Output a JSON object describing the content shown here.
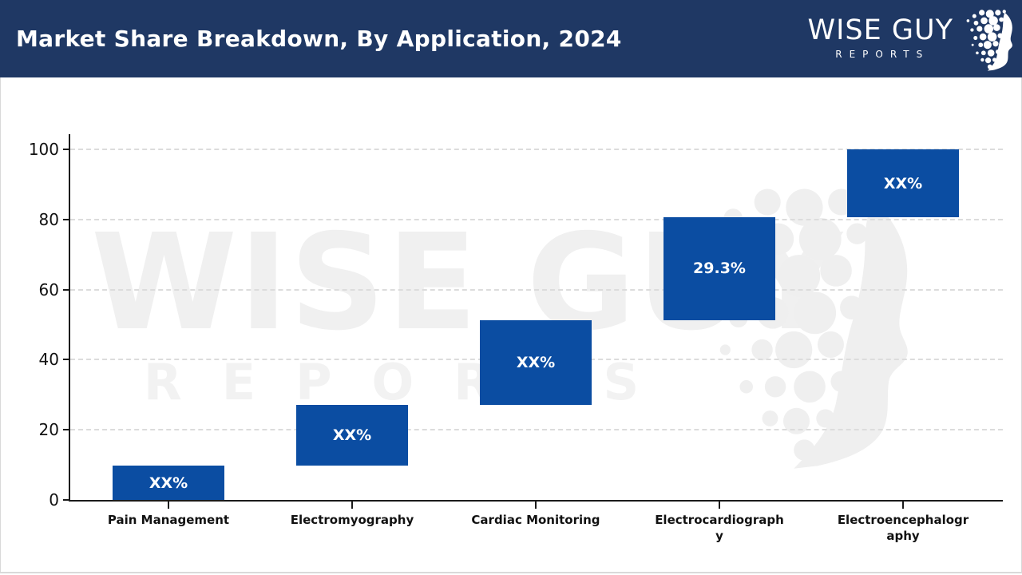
{
  "header": {
    "title": "Market Share Breakdown, By Application, 2024",
    "logo": {
      "line1": "WISE GUY",
      "line2": "REPORTS"
    }
  },
  "watermark": {
    "line1": "WISE GUY",
    "line2": "REPORTS"
  },
  "colors": {
    "header_bg": "#1f3864",
    "bar": "#0b4da2",
    "bar_label": "#ffffff",
    "grid": "#dcdcdc",
    "axis": "#1a1a1a",
    "watermark": "#f0f0f0",
    "page_bg": "#ffffff"
  },
  "chart_data": {
    "type": "bar",
    "subtype": "waterfall",
    "title": "Market Share Breakdown, By Application, 2024",
    "xlabel": "",
    "ylabel": "",
    "categories": [
      "Pain Management",
      "Electromyography",
      "Cardiac Monitoring",
      "Electrocardiography",
      "Electroencephalography"
    ],
    "category_display_labels": [
      "Pain Management",
      "Electromyography",
      "Cardiac Monitoring",
      "Electrocardiograph\ny",
      "Electroencephalogr\naphy"
    ],
    "values": [
      {
        "category": "Pain Management",
        "start": 0,
        "end": 9.7,
        "height": 9.7,
        "label": "XX%"
      },
      {
        "category": "Electromyography",
        "start": 9.7,
        "end": 27.0,
        "height": 17.3,
        "label": "XX%"
      },
      {
        "category": "Cardiac Monitoring",
        "start": 27.0,
        "end": 51.3,
        "height": 24.3,
        "label": "XX%"
      },
      {
        "category": "Electrocardiography",
        "start": 51.3,
        "end": 80.6,
        "height": 29.3,
        "label": "29.3%"
      },
      {
        "category": "Electroencephalography",
        "start": 80.6,
        "end": 100.0,
        "height": 19.4,
        "label": "XX%"
      }
    ],
    "yticks": [
      0,
      20,
      40,
      60,
      80,
      100
    ],
    "ylim": [
      0,
      105
    ],
    "grid": "horizontal-dashed",
    "legend": "none"
  }
}
